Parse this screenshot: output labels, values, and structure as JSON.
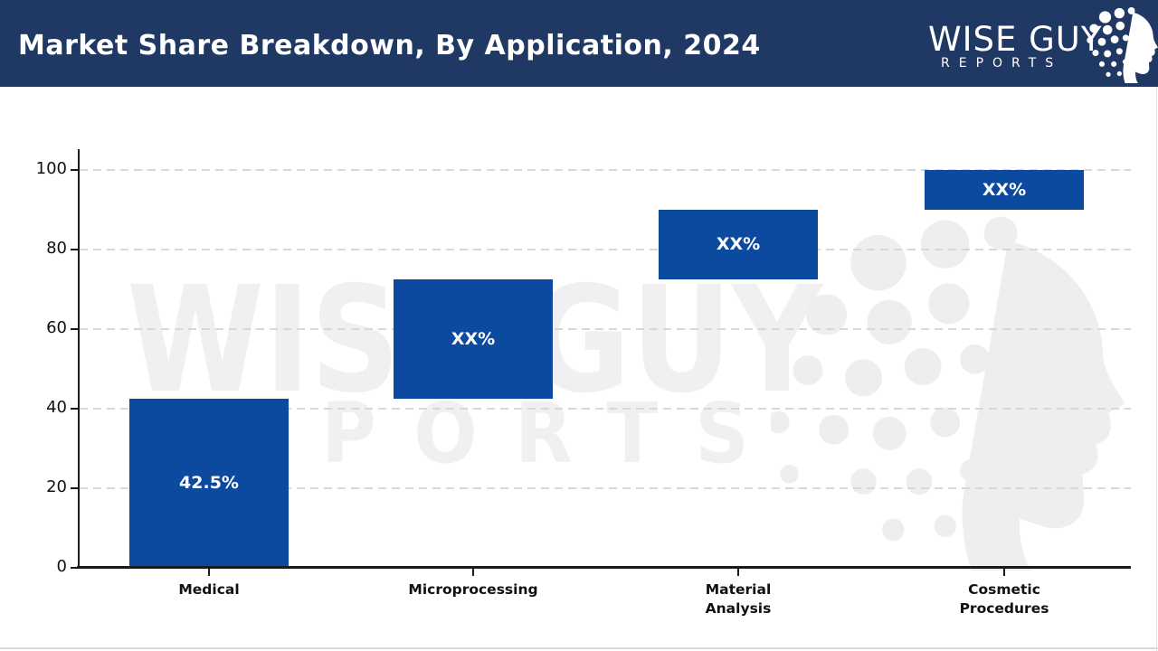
{
  "header": {
    "title": "Market Share Breakdown, By Application, 2024",
    "brand_line1": "WISE GUY",
    "brand_line2": "REPORTS",
    "bg_color": "#203864",
    "text_color": "#ffffff"
  },
  "watermark": {
    "line1": "WISE GUY",
    "line2": "REPORTS",
    "color": "#f0f0f2"
  },
  "chart_data": {
    "type": "bar",
    "variant": "waterfall",
    "title": "Market Share Breakdown, By Application, 2024",
    "categories": [
      "Medical",
      "Microprocessing",
      "Material Analysis",
      "Cosmetic Procedures"
    ],
    "bars": [
      {
        "category": "Medical",
        "start": 0,
        "end": 42.5,
        "value": 42.5,
        "label": "42.5%"
      },
      {
        "category": "Microprocessing",
        "start": 42.5,
        "end": 72.5,
        "value": 30,
        "label": "XX%"
      },
      {
        "category": "Material Analysis",
        "start": 72.5,
        "end": 90,
        "value": 17.5,
        "label": "XX%"
      },
      {
        "category": "Cosmetic Procedures",
        "start": 90,
        "end": 100,
        "value": 10,
        "label": "XX%"
      }
    ],
    "xlabel": "",
    "ylabel": "",
    "ylim": [
      0,
      100
    ],
    "yticks": [
      0,
      20,
      40,
      60,
      80,
      100
    ],
    "grid": true,
    "grid_style": "dashed",
    "grid_color": "#d8d8d8",
    "bar_color": "#0b4a9f",
    "bar_label_color": "#ffffff",
    "axis_color": "#1a1a1a",
    "legend": "none"
  }
}
